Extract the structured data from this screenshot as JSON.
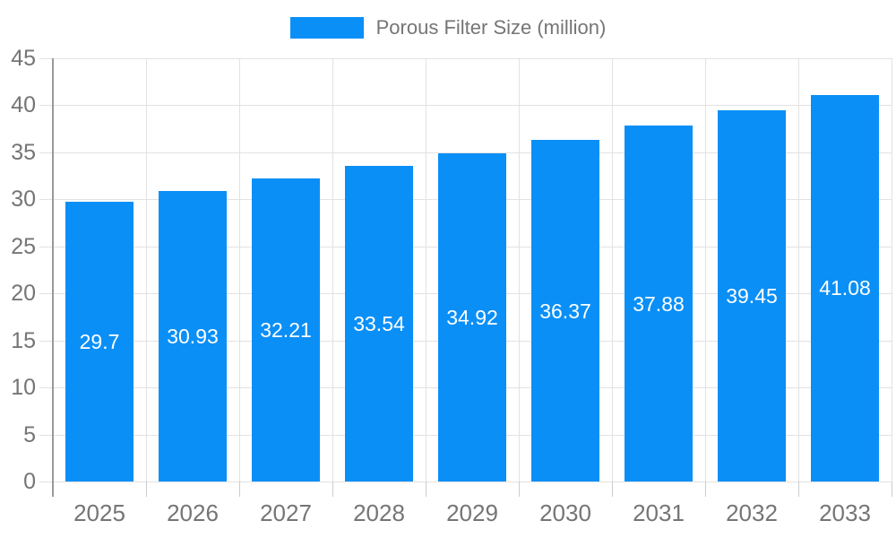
{
  "chart_data": {
    "type": "bar",
    "legend": "Porous Filter Size (million)",
    "legend_position": "top",
    "categories": [
      "2025",
      "2026",
      "2027",
      "2028",
      "2029",
      "2030",
      "2031",
      "2032",
      "2033"
    ],
    "values": [
      29.7,
      30.93,
      32.21,
      33.54,
      34.92,
      36.37,
      37.88,
      39.45,
      41.08
    ],
    "ylim": [
      0,
      45
    ],
    "ytick_step": 5,
    "grid": true,
    "value_labels_inside_bars": true
  },
  "colors": {
    "bar": "#0a8ff7",
    "grid": "#e2e2e2",
    "axis_line": "#999999",
    "tick": "#cccccc",
    "axis_text": "#757575",
    "bar_label_text": "#ffffff"
  }
}
